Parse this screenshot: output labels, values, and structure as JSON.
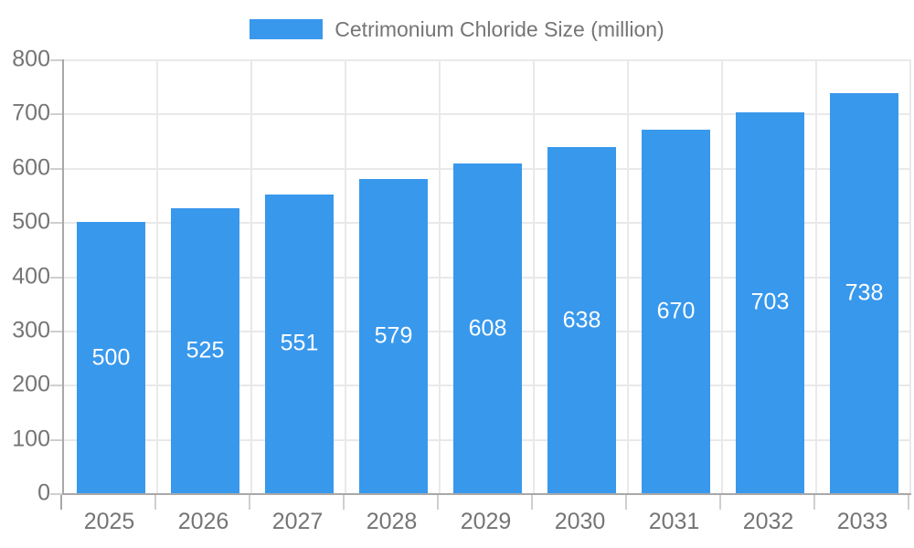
{
  "chart_data": {
    "type": "bar",
    "title": "Cetrimonium Chloride Size (million)",
    "legend": [
      {
        "label": "Cetrimonium Chloride Size (million)",
        "color": "#3898EC"
      }
    ],
    "legend_position": "top-center",
    "categories": [
      "2025",
      "2026",
      "2027",
      "2028",
      "2029",
      "2030",
      "2031",
      "2032",
      "2033"
    ],
    "values": [
      500,
      525,
      551,
      579,
      608,
      638,
      670,
      703,
      738
    ],
    "xlabel": "",
    "ylabel": "",
    "ylim": [
      0,
      800
    ],
    "ytick_step": 100,
    "ytick_labels": [
      "0",
      "100",
      "200",
      "300",
      "400",
      "500",
      "600",
      "700",
      "800"
    ],
    "grid": true,
    "bar_value_labels_shown": true,
    "colors": {
      "bar": "#3898EC",
      "axis_line": "#a8a8a8",
      "gridline": "#e9e9e9",
      "tick": "#cfcfcf",
      "axis_text": "#757575",
      "bar_label_text": "#ffffff",
      "background": "#ffffff"
    }
  }
}
